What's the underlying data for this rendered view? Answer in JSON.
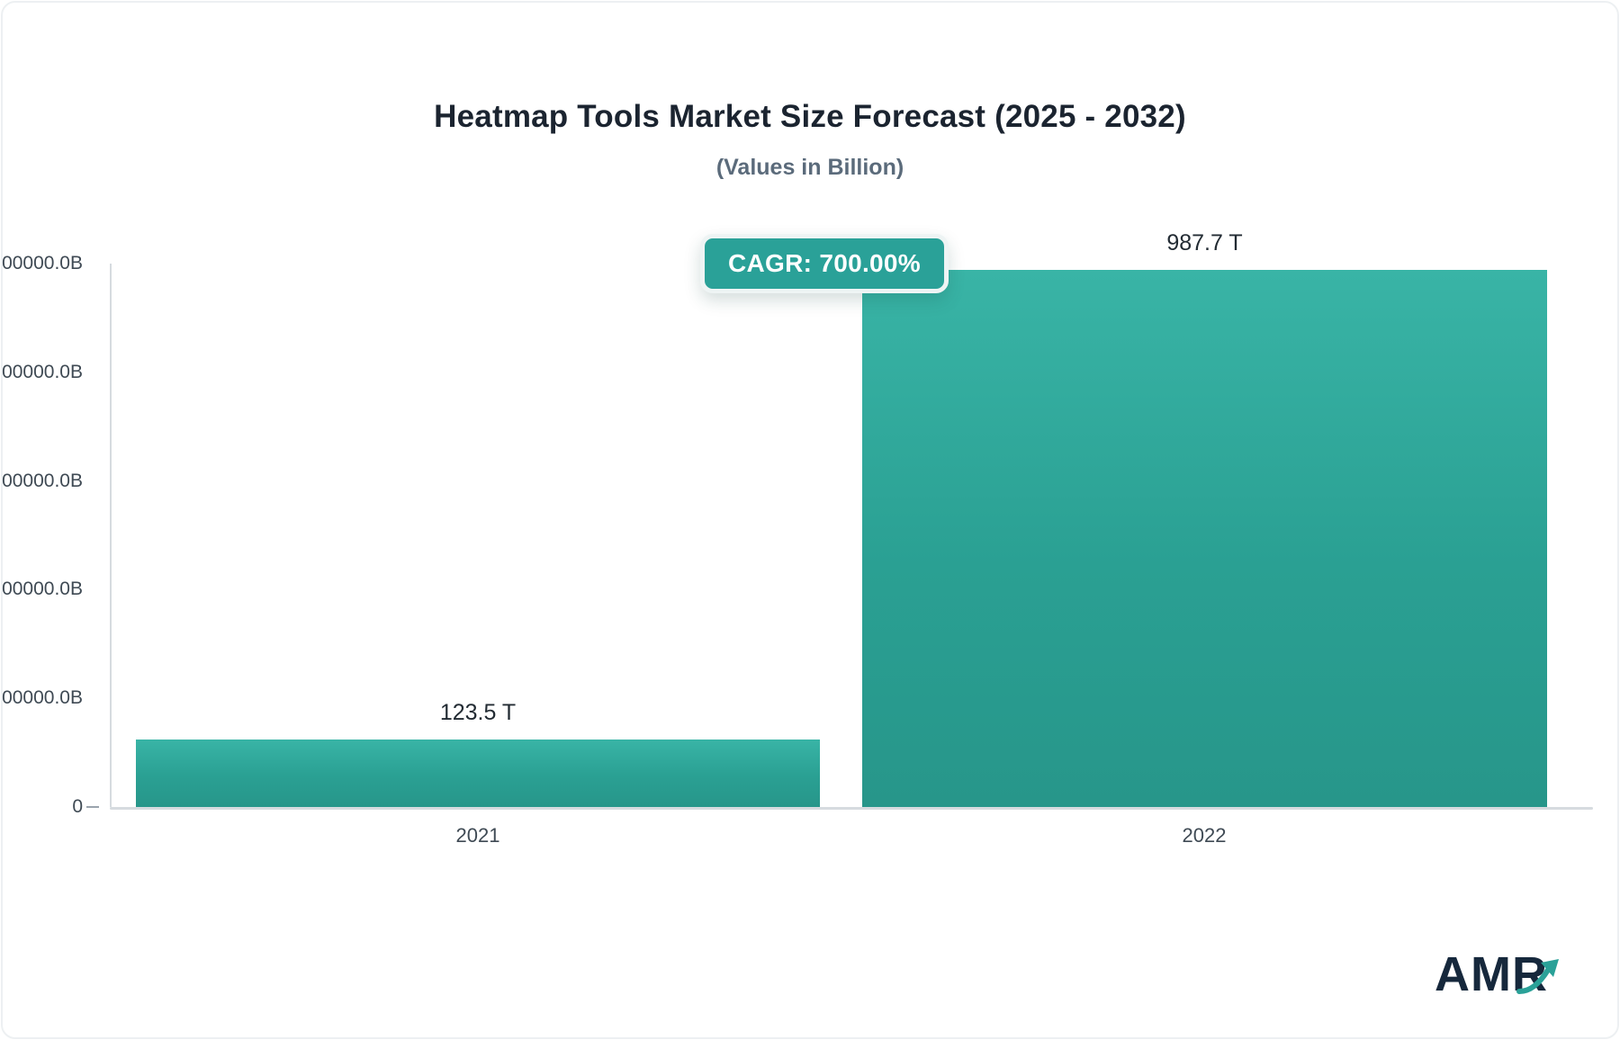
{
  "badge": {
    "label": "CAGR: 700.00%"
  },
  "chart_data": {
    "type": "bar",
    "title": "Heatmap Tools Market Size Forecast (2025 - 2032)",
    "subtitle": "(Values in Billion)",
    "categories": [
      "2021",
      "2022"
    ],
    "values": [
      123500,
      987700
    ],
    "value_labels": [
      "123.5 T",
      "987.7 T"
    ],
    "ylim": [
      0,
      1000000
    ],
    "grid": false,
    "legend": false,
    "y_ticks": [
      {
        "label": "00000.0B",
        "value": 1000000
      },
      {
        "label": "00000.0B",
        "value": 800000
      },
      {
        "label": "00000.0B",
        "value": 600000
      },
      {
        "label": "00000.0B",
        "value": 400000
      },
      {
        "label": "00000.0B",
        "value": 200000
      },
      {
        "label": "0",
        "value": 0
      }
    ]
  },
  "colors": {
    "bar_top": "#39b4a6",
    "bar_bottom": "#27968a",
    "badge_background": "#2aa198",
    "title_text": "#1b2430",
    "subtitle_text": "#5b6b7b",
    "axis_line": "#d6dbdf",
    "tick_text": "#3f4a54"
  },
  "logo": {
    "text": "AMR"
  }
}
